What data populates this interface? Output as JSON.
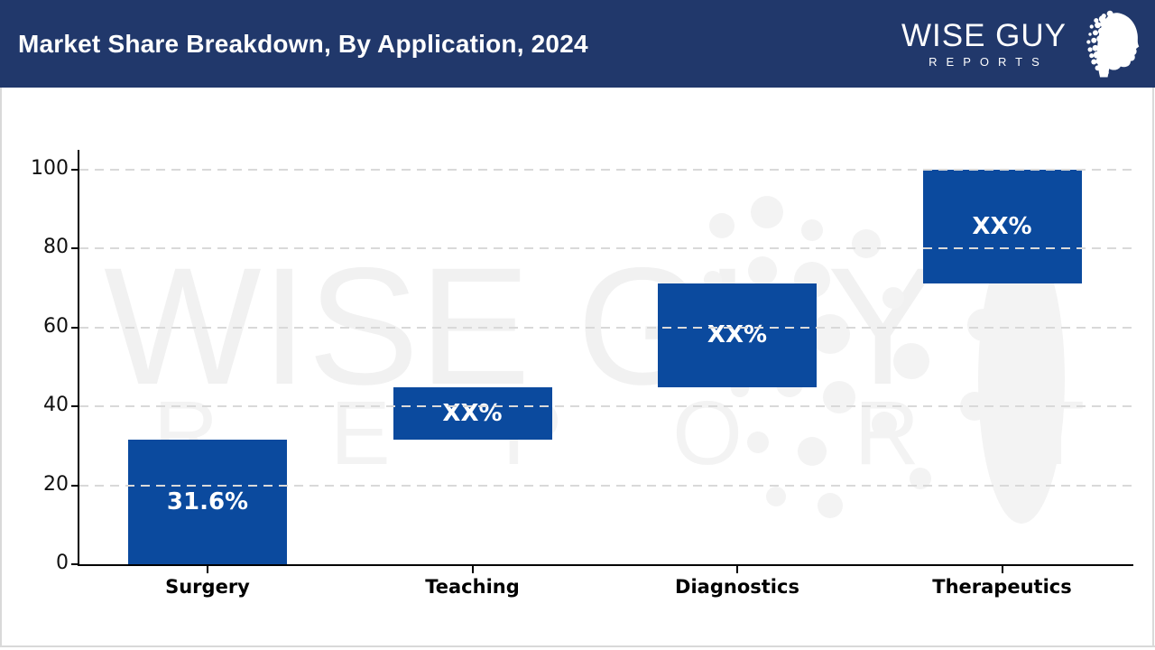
{
  "header": {
    "title": "Market Share Breakdown, By Application, 2024",
    "bg_color": "#21386b",
    "text_color": "#ffffff",
    "logo": {
      "line1": "WISE GUY",
      "line2": "REPORTS"
    }
  },
  "watermark": {
    "line1": "WISE GUY",
    "line2": "R E P O R T S"
  },
  "chart_data": {
    "type": "bar",
    "subtype": "waterfall",
    "title": "",
    "xlabel": "",
    "ylabel": "",
    "categories": [
      "Surgery",
      "Teaching",
      "Diagnostics",
      "Therapeutics"
    ],
    "segments": [
      {
        "category": "Surgery",
        "label": "31.6%",
        "start": 0,
        "end": 31.6,
        "value_est": 31.6
      },
      {
        "category": "Teaching",
        "label": "XX%",
        "start": 31.6,
        "end": 44.8,
        "value_est": 13.2
      },
      {
        "category": "Diagnostics",
        "label": "XX%",
        "start": 44.8,
        "end": 71.1,
        "value_est": 26.3
      },
      {
        "category": "Therapeutics",
        "label": "XX%",
        "start": 71.1,
        "end": 100,
        "value_est": 28.9
      }
    ],
    "yticks": [
      0,
      20,
      40,
      60,
      80,
      100
    ],
    "ylim": [
      0,
      105
    ],
    "grid": "dashed-horizontal",
    "legend": "none",
    "bar_color": "#0b4a9e",
    "bar_label_color": "#ffffff",
    "grid_color": "#d9d9d9"
  }
}
